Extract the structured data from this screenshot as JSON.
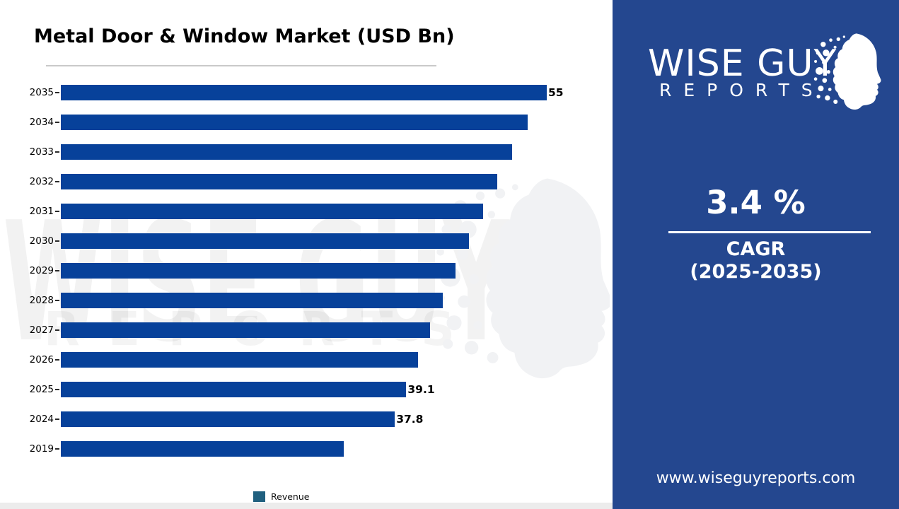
{
  "chart_data": {
    "type": "bar",
    "orientation": "horizontal",
    "title": "Metal Door & Window Market (USD Bn)",
    "categories": [
      "2035",
      "2034",
      "2033",
      "2032",
      "2031",
      "2030",
      "2029",
      "2028",
      "2027",
      "2026",
      "2025",
      "2024",
      "2019"
    ],
    "values": [
      55,
      52.8,
      51.1,
      49.4,
      47.8,
      46.2,
      44.7,
      43.2,
      41.8,
      40.4,
      39.1,
      37.8,
      32
    ],
    "data_labels": [
      "55",
      null,
      null,
      null,
      null,
      null,
      null,
      null,
      null,
      null,
      "39.1",
      "37.8",
      null
    ],
    "xlabel": "",
    "ylabel": "",
    "xlim": [
      0,
      55
    ],
    "grid": false,
    "legend": [
      "Revenue"
    ],
    "legend_position": "bottom",
    "bar_color": "#07419a",
    "legend_swatch_color": "#20607f"
  },
  "watermark": {
    "line1": "WISE GUY",
    "line2": "REPORTS"
  },
  "brand_panel": {
    "background": "#24478f",
    "logo_line1": "WISE GUY",
    "logo_line2": "REPORTS",
    "cagr_value": "3.4 %",
    "cagr_label": "CAGR",
    "cagr_range": "(2025-2035)",
    "website": "www.wiseguyreports.com"
  }
}
